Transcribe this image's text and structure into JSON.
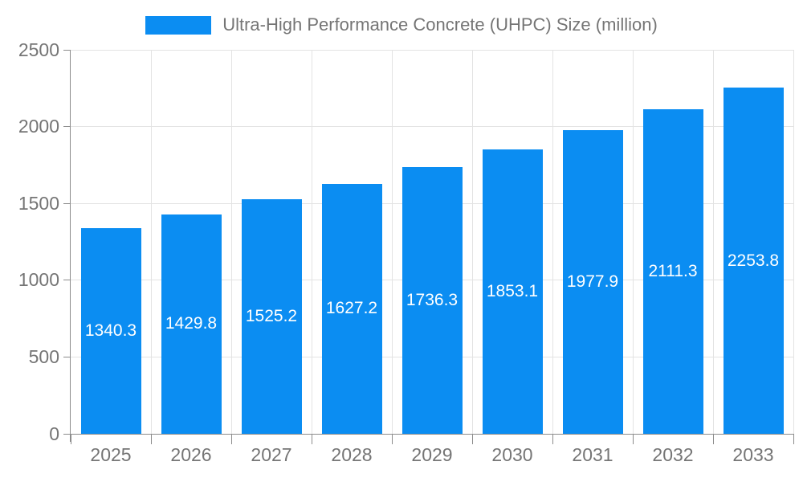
{
  "chart_data": {
    "type": "bar",
    "title": "Ultra-High Performance Concrete (UHPC) Size (million)",
    "legend_entries": [
      "Ultra-High Performance Concrete (UHPC) Size (million)"
    ],
    "legend_position": "top-center",
    "categories": [
      "2025",
      "2026",
      "2027",
      "2028",
      "2029",
      "2030",
      "2031",
      "2032",
      "2033"
    ],
    "series": [
      {
        "name": "Ultra-High Performance Concrete (UHPC) Size (million)",
        "values": [
          1340.3,
          1429.8,
          1525.2,
          1627.2,
          1736.3,
          1853.1,
          1977.9,
          2111.3,
          2253.8
        ]
      }
    ],
    "data_labels": [
      "1340.3",
      "1429.8",
      "1525.2",
      "1627.2",
      "1736.3",
      "1853.1",
      "1977.9",
      "2111.3",
      "2253.8"
    ],
    "xlabel": "",
    "ylabel": "",
    "ylim": [
      0,
      2500
    ],
    "yticks": [
      0,
      500,
      1000,
      1500,
      2000,
      2500
    ],
    "grid": true,
    "colors": {
      "bar": "#0b8df2",
      "bar_label_text": "#ffffff",
      "axis_text": "#757575",
      "legend_text": "#757575",
      "gridline": "#e3e3e3",
      "axis_line": "#8c8c8c"
    }
  }
}
